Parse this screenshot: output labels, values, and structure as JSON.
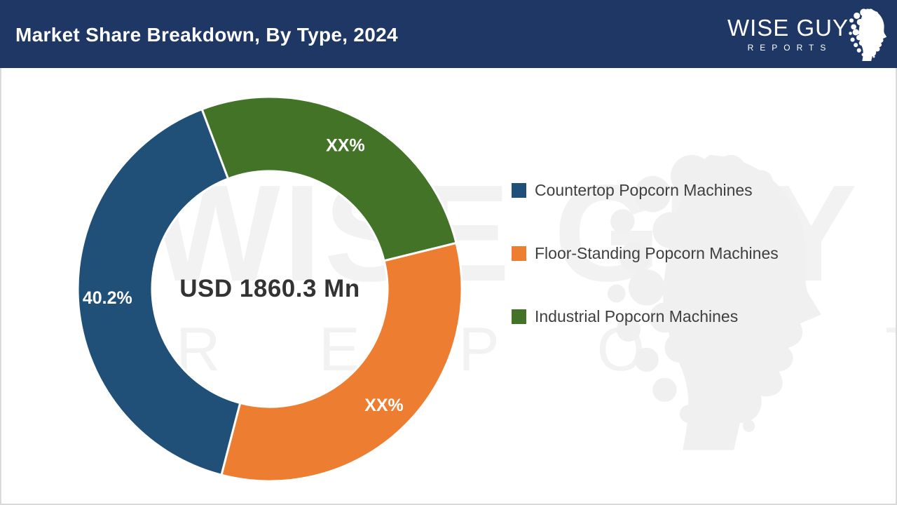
{
  "header": {
    "title": "Market Share Breakdown, By Type, 2024",
    "logo": {
      "line1": "WISE GUY",
      "line2": "REPORTS"
    }
  },
  "watermark": {
    "line1": "WISE GUY",
    "line2": "R E P O R T S"
  },
  "colors": {
    "header_bg": "#1F3764",
    "border": "#D9D9D9",
    "legend_text": "#3F3F3F",
    "center_text": "#333333",
    "label_text": "#FFFFFF",
    "watermark": "#F2F2F2"
  },
  "chart_data": {
    "type": "pie",
    "variant": "donut",
    "title": "Market Share Breakdown, By Type, 2024",
    "center_label": "USD 1860.3 Mn",
    "legend_position": "right",
    "direction": "counterclockwise",
    "start_angle_deg": 110.7,
    "outer_radius": 274,
    "inner_radius": 168,
    "segments": [
      {
        "label": "Countertop Popcorn Machines",
        "value_label": "40.2%",
        "percent": 40.2,
        "color": "#205078"
      },
      {
        "label": "Floor-Standing Popcorn Machines",
        "value_label": "XX%",
        "percent": 32.9,
        "color": "#ED7D31"
      },
      {
        "label": "Industrial Popcorn Machines",
        "value_label": "XX%",
        "percent": 26.9,
        "color": "#427327"
      }
    ]
  }
}
